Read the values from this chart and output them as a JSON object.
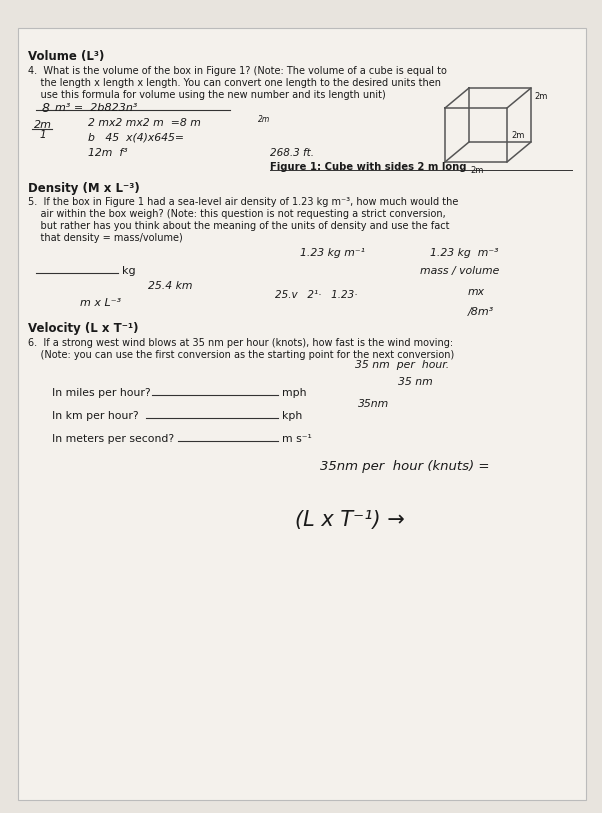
{
  "bg_color": "#e8e4de",
  "paper_color": "#f4f1ec",
  "vol_header": "Volume (L³)",
  "q4_lines": [
    "4.  What is the volume of the box in Figure 1? (Note: The volume of a cube is equal to",
    "    the length x length x length. You can convert one length to the desired units then",
    "    use this formula for volume using the new number and its length unit)"
  ],
  "q4_ans1": "8",
  "q4_ans2": "m³ =  2b823n³",
  "q4_left1": "2m",
  "q4_left2": "1",
  "q4_center1": "2 mx2 mx2 m  =8 m",
  "q4_center1_sup": "2m",
  "q4_center2": "b   45  x(4)x645=",
  "q4_center3": "12m  f³",
  "q4_right1": "268.3 ft.",
  "q4_fig_cap": "Figure 1: Cube with sides 2 m long",
  "density_header": "Density (M x L⁻³)",
  "q5_lines": [
    "5.  If the box in Figure 1 had a sea-level air density of 1.23 kg m⁻³, how much would the",
    "    air within the box weigh? (Note: this question is not requesting a strict conversion,",
    "    but rather has you think about the meaning of the units of density and use the fact",
    "    that density = mass/volume)"
  ],
  "q5_note1": "1.23 kg m⁻¹",
  "q5_note2": "1.23 kg  m⁻³",
  "q5_note3": "mass / volume",
  "q5_kg": "kg",
  "q5_work1": "25.4 km",
  "q5_work2": "25.v   2¹·   1.23·",
  "q5_work3": "mx",
  "q5_work4": "m x L⁻³",
  "q5_work5": "/8m³",
  "vel_header": "Velocity (L x T⁻¹)",
  "q6_lines": [
    "6.  If a strong west wind blows at 35 nm per hour (knots), how fast is the wind moving:",
    "    (Note: you can use the first conversion as the starting point for the next conversion)"
  ],
  "q6_note1": "35 nm  per  hour.",
  "q6_note2": "35 nm",
  "q6_note3": "35nm",
  "q6_mph": "In miles per hour?",
  "q6_mph_unit": "mph",
  "q6_kph": "In km per hour?",
  "q6_kph_unit": "kph",
  "q6_ms": "In meters per second?",
  "q6_ms_unit": "m s⁻¹",
  "q6_bottom1": "35nm per  hour (knuts) =",
  "q6_bottom2": "(L x T⁻¹) →"
}
